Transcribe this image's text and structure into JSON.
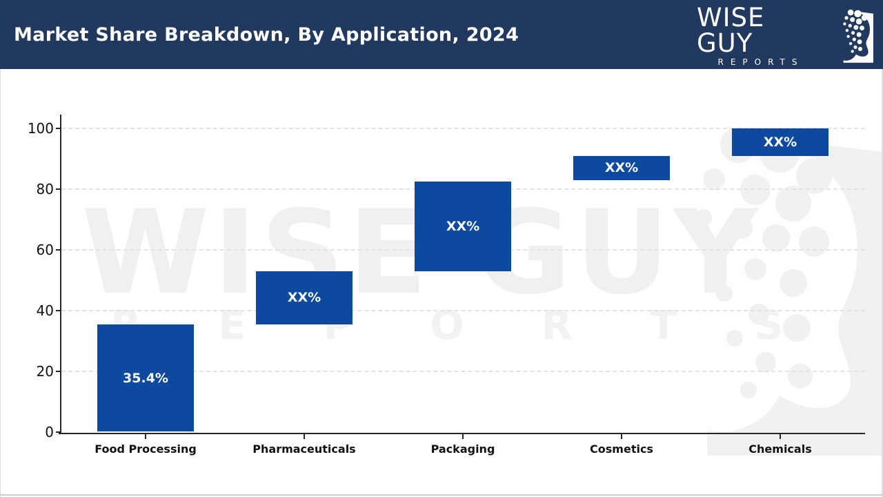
{
  "header": {
    "title": "Market Share Breakdown, By Application, 2024",
    "bg_color": "#22395f",
    "logo": {
      "line1": "WISE GUY",
      "line2": "REPORTS"
    }
  },
  "watermark": {
    "line1": "WISE GUY",
    "line2": "REPORTS"
  },
  "chart_data": {
    "type": "bar",
    "subtype": "waterfall",
    "title": "Market Share Breakdown, By Application, 2024",
    "categories": [
      "Food Processing",
      "Pharmaceuticals",
      "Packaging",
      "Cosmetics",
      "Chemicals"
    ],
    "segments": [
      {
        "category": "Food Processing",
        "start": 0,
        "end": 35.4,
        "label": "35.4%"
      },
      {
        "category": "Pharmaceuticals",
        "start": 35.4,
        "end": 53,
        "label": "XX%"
      },
      {
        "category": "Packaging",
        "start": 53,
        "end": 82.5,
        "label": "XX%"
      },
      {
        "category": "Cosmetics",
        "start": 83,
        "end": 91,
        "label": "XX%"
      },
      {
        "category": "Chemicals",
        "start": 91,
        "end": 100,
        "label": "XX%"
      }
    ],
    "xlabel": "",
    "ylabel": "",
    "y_ticks": [
      0,
      20,
      40,
      60,
      80,
      100
    ],
    "ylim": [
      0,
      105
    ],
    "grid": "horizontal-dashed",
    "legend": "none",
    "bar_color": "#0d4a9f",
    "bar_label_color": "#ffffff",
    "axis_color": "#262626",
    "gridline_color": "#e3e3e3"
  }
}
